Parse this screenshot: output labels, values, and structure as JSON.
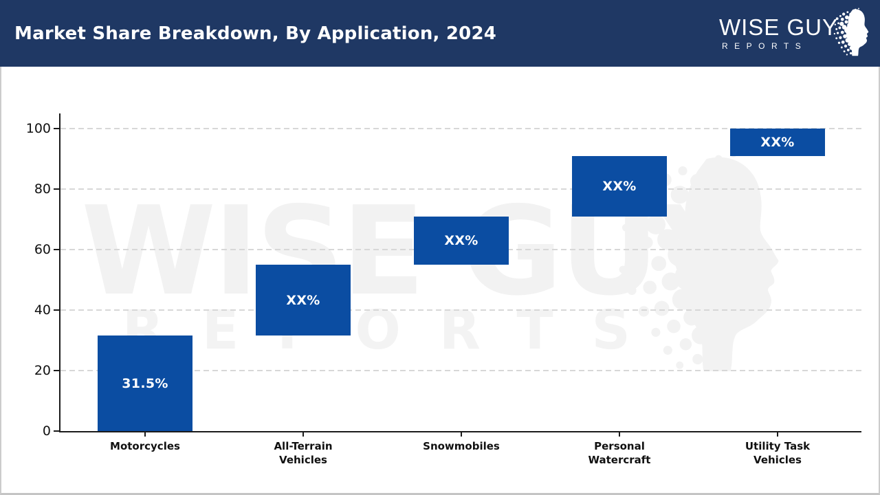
{
  "header": {
    "title": "Market Share Breakdown, By Application, 2024",
    "logo": {
      "line1": "WISE GUY",
      "line2": "REPORTS"
    }
  },
  "watermark": {
    "line1": "WISE GUY",
    "line2": "REPORTS"
  },
  "colors": {
    "header_bg": "#1f3864",
    "bar": "#0b4da2",
    "bar_label": "#ffffff",
    "grid": "#d7d7d7",
    "axis": "#1a1a1a",
    "watermark": "#f2f2f2"
  },
  "chart_data": {
    "type": "bar",
    "variant": "waterfall",
    "title": "Market Share Breakdown, By Application, 2024",
    "xlabel": "",
    "ylabel": "",
    "categories": [
      [
        "Motorcycles"
      ],
      [
        "All-Terrain",
        "Vehicles"
      ],
      [
        "Snowmobiles"
      ],
      [
        "Personal",
        "Watercraft"
      ],
      [
        "Utility Task",
        "Vehicles"
      ]
    ],
    "bar_labels": [
      "31.5%",
      "XX%",
      "XX%",
      "XX%",
      "XX%"
    ],
    "segments": [
      {
        "start": 0,
        "end": 31.5
      },
      {
        "start": 31.5,
        "end": 55
      },
      {
        "start": 55,
        "end": 71
      },
      {
        "start": 71,
        "end": 91
      },
      {
        "start": 91,
        "end": 100
      }
    ],
    "values_estimated": [
      31.5,
      23.5,
      16,
      20,
      9
    ],
    "shown_value": "Only the first bar value (31.5%) is printed; other bars are masked as XX%",
    "yticks": [
      0,
      20,
      40,
      60,
      80,
      100
    ],
    "ylim": [
      0,
      105
    ],
    "grid": "horizontal-dashed",
    "legend": "none"
  }
}
